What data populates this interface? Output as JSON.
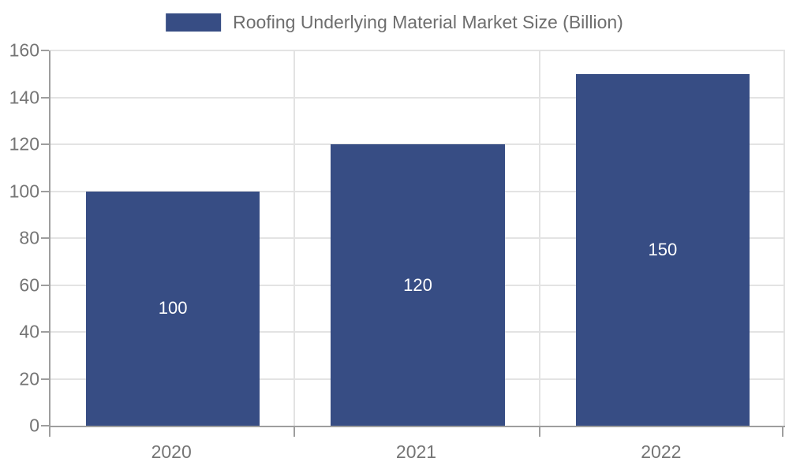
{
  "colors": {
    "bar": "#374d84",
    "grid": "#e3e3e3",
    "axis": "#9e9e9e",
    "tick_text": "#757575",
    "legend_text": "#6e6e6e",
    "bar_label": "#ffffff",
    "background": "#ffffff"
  },
  "legend": {
    "label": "Roofing Underlying Material Market Size (Billion)"
  },
  "chart_data": {
    "type": "bar",
    "title": "Roofing Underlying Material Market Size (Billion)",
    "categories": [
      "2020",
      "2021",
      "2022"
    ],
    "series": [
      {
        "name": "Roofing Underlying Material Market Size (Billion)",
        "values": [
          100,
          120,
          150
        ]
      }
    ],
    "values": [
      100,
      120,
      150
    ],
    "bar_labels": [
      "100",
      "120",
      "150"
    ],
    "xlabel": "",
    "ylabel": "",
    "ylim": [
      0,
      160
    ],
    "ytick_step": 20,
    "yticks": [
      0,
      20,
      40,
      60,
      80,
      100,
      120,
      140,
      160
    ],
    "grid": true,
    "legend_position": "top"
  }
}
